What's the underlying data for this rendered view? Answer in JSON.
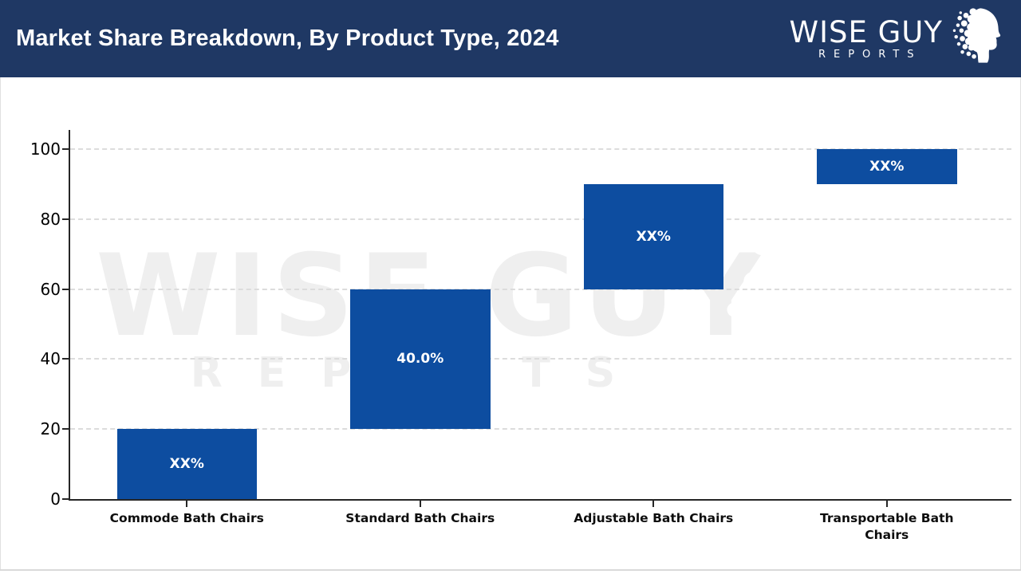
{
  "header": {
    "title": "Market Share Breakdown, By Product Type, 2024",
    "bg_color": "#1f3864",
    "logo": {
      "brand": "WISE GUY",
      "sub": "REPORTS"
    }
  },
  "watermark": {
    "brand": "WISE GUY",
    "sub": "REPORTS",
    "color": "#efefef"
  },
  "chart_data": {
    "type": "bar",
    "subtype": "waterfall",
    "title": "Market Share Breakdown, By Product Type, 2024",
    "categories": [
      "Commode Bath Chairs",
      "Standard Bath Chairs",
      "Adjustable Bath Chairs",
      "Transportable Bath Chairs"
    ],
    "segments": [
      {
        "category": "Commode Bath Chairs",
        "start": 0,
        "end": 20,
        "label": "XX%"
      },
      {
        "category": "Standard Bath Chairs",
        "start": 20,
        "end": 60,
        "label": "40.0%"
      },
      {
        "category": "Adjustable Bath Chairs",
        "start": 60,
        "end": 90,
        "label": "XX%"
      },
      {
        "category": "Transportable Bath Chairs",
        "start": 90,
        "end": 100,
        "label": "XX%"
      }
    ],
    "ylim": [
      0,
      100
    ],
    "yticks": [
      0,
      20,
      40,
      60,
      80,
      100
    ],
    "xlabel": "",
    "ylabel": "",
    "grid": "horizontal-dashed",
    "legend": "none",
    "bar_color": "#0d4da0",
    "bar_label_color": "#ffffff",
    "axis_color": "#262626",
    "grid_color": "#dcdcdc"
  }
}
